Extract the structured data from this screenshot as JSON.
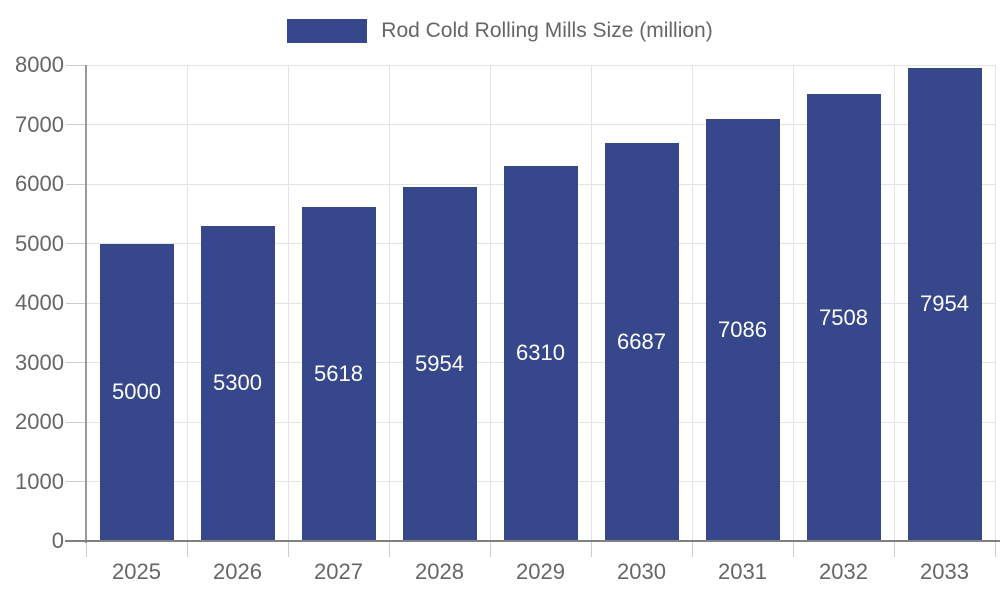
{
  "legend": {
    "label": "Rod Cold Rolling Mills Size (million)"
  },
  "colors": {
    "bar": "#36478b",
    "bar_value_text": "#ffffff",
    "axis_text": "#666666",
    "legend_text": "#666666",
    "gridline": "#e4e4e4",
    "tick_mark": "#cccccc",
    "y_axis_line": "#999999",
    "x_axis_line": "#808080",
    "background": "#ffffff"
  },
  "chart_data": {
    "type": "bar",
    "title": "Rod Cold Rolling Mills Size (million)",
    "series_name": "Rod Cold Rolling Mills Size (million)",
    "categories": [
      "2025",
      "2026",
      "2027",
      "2028",
      "2029",
      "2030",
      "2031",
      "2032",
      "2033"
    ],
    "values": [
      5000,
      5300,
      5618,
      5954,
      6310,
      6687,
      7086,
      7508,
      7954
    ],
    "bar_labels": [
      5000,
      5300,
      5618,
      5954,
      6310,
      6687,
      7086,
      7508,
      7954
    ],
    "xlabel": "",
    "ylabel": "",
    "ylim": [
      0,
      8000
    ],
    "y_ticks": [
      0,
      1000,
      2000,
      3000,
      4000,
      5000,
      6000,
      7000,
      8000
    ],
    "grid": true,
    "legend_position": "top center",
    "bar_label_position": "inside center",
    "bar_color": "#36478b"
  }
}
